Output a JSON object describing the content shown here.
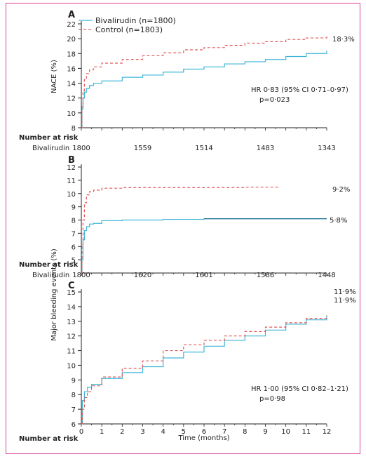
{
  "colors": {
    "bivalirudin": "#3fb6d6",
    "control": "#e05a5a",
    "frame": "#d9459b",
    "axis": "#222222",
    "plateau": "#1f6f8b"
  },
  "chart_data": [
    {
      "type": "line",
      "panel": "A",
      "ylabel": "NACE (%)",
      "ylim": [
        8,
        22
      ],
      "yticks": [
        8,
        10,
        12,
        14,
        16,
        18,
        20,
        22
      ],
      "xlim": [
        0,
        12
      ],
      "legend": [
        {
          "name": "Bivalirudin (n=1800)",
          "style": "solid"
        },
        {
          "name": "Control (n=1803)",
          "style": "dashed"
        }
      ],
      "series": [
        {
          "name": "Bivalirudin (n=1800)",
          "x": [
            0,
            0.03,
            0.08,
            0.15,
            0.25,
            0.4,
            0.6,
            1,
            2,
            3,
            4,
            5,
            6,
            7,
            8,
            9,
            10,
            11,
            12
          ],
          "y": [
            8,
            10.5,
            12,
            12.8,
            13.3,
            13.7,
            14,
            14.3,
            14.8,
            15.1,
            15.5,
            15.9,
            16.2,
            16.6,
            16.9,
            17.2,
            17.6,
            18,
            18.4
          ]
        },
        {
          "name": "Control (n=1803)",
          "x": [
            0,
            0.03,
            0.08,
            0.15,
            0.25,
            0.4,
            0.6,
            1,
            2,
            3,
            4,
            5,
            6,
            7,
            8,
            9,
            10,
            11,
            12
          ],
          "y": [
            8,
            11,
            13,
            14.5,
            15.3,
            15.8,
            16.2,
            16.7,
            17.2,
            17.7,
            18.1,
            18.5,
            18.8,
            19.1,
            19.4,
            19.6,
            19.9,
            20.1,
            20.3
          ]
        }
      ],
      "end_labels": [
        "18·3%"
      ],
      "annotation": "HR 0·83  (95%  CI 0·71–0·97)",
      "annotation2": "p=0·023",
      "risk_label": "Number at risk",
      "risk_row_name": "Bivalirudin",
      "risk_values": [
        "1800",
        "1559",
        "1514",
        "1483",
        "1343"
      ]
    },
    {
      "type": "line",
      "panel": "B",
      "ylabel": "Major bleeding events (%)",
      "ylim": [
        4,
        12
      ],
      "yticks": [
        5,
        6,
        7,
        8,
        9,
        10,
        11,
        12
      ],
      "xlim": [
        0,
        12
      ],
      "series": [
        {
          "name": "Bivalirudin",
          "x": [
            0,
            0.03,
            0.08,
            0.15,
            0.25,
            0.4,
            0.6,
            1,
            2,
            4,
            6,
            12
          ],
          "y": [
            4,
            5,
            6.5,
            7.2,
            7.5,
            7.7,
            7.75,
            7.95,
            8.0,
            8.05,
            8.1,
            8.1
          ]
        },
        {
          "name": "Control",
          "x": [
            0,
            0.03,
            0.08,
            0.15,
            0.25,
            0.4,
            0.6,
            1,
            2,
            5,
            8,
            9.7
          ],
          "y": [
            4,
            6,
            8,
            9.3,
            9.9,
            10.15,
            10.25,
            10.4,
            10.45,
            10.45,
            10.48,
            10.5
          ]
        }
      ],
      "end_labels": [
        "9·2%",
        "5·8%"
      ],
      "risk_label": "Number at risk",
      "risk_row_name": "Bivalirudin",
      "risk_values": [
        "1800",
        "1620",
        "1601",
        "1586",
        "1448"
      ]
    },
    {
      "type": "line",
      "panel": "C",
      "ylim": [
        6,
        15
      ],
      "yticks": [
        6,
        7,
        8,
        9,
        10,
        11,
        12,
        13,
        14,
        15
      ],
      "xlim": [
        0,
        12
      ],
      "xticks": [
        0,
        1,
        2,
        3,
        4,
        5,
        6,
        7,
        8,
        9,
        10,
        11,
        12
      ],
      "xlabel": "Time (months)",
      "series": [
        {
          "name": "Bivalirudin",
          "x": [
            0,
            0.05,
            0.15,
            0.3,
            0.5,
            1,
            2,
            3,
            4,
            5,
            6,
            7,
            8,
            9,
            10,
            11,
            12
          ],
          "y": [
            6,
            7.6,
            8.2,
            8.5,
            8.7,
            9.1,
            9.5,
            9.9,
            10.5,
            10.9,
            11.3,
            11.7,
            12.0,
            12.4,
            12.8,
            13.1,
            13.4
          ]
        },
        {
          "name": "Control",
          "x": [
            0,
            0.05,
            0.15,
            0.3,
            0.5,
            1,
            2,
            3,
            4,
            5,
            6,
            7,
            8,
            9,
            10,
            11,
            12
          ],
          "y": [
            6,
            7.0,
            7.8,
            8.2,
            8.6,
            9.2,
            9.8,
            10.3,
            11.0,
            11.4,
            11.7,
            12.0,
            12.3,
            12.6,
            12.9,
            13.2,
            13.4
          ]
        }
      ],
      "end_labels": [
        "11·9%",
        "11·9%"
      ],
      "annotation": "HR 1·00  (95%  CI 0·82–1·21)",
      "annotation2": "p=0·98",
      "risk_label": "Number at risk"
    }
  ]
}
